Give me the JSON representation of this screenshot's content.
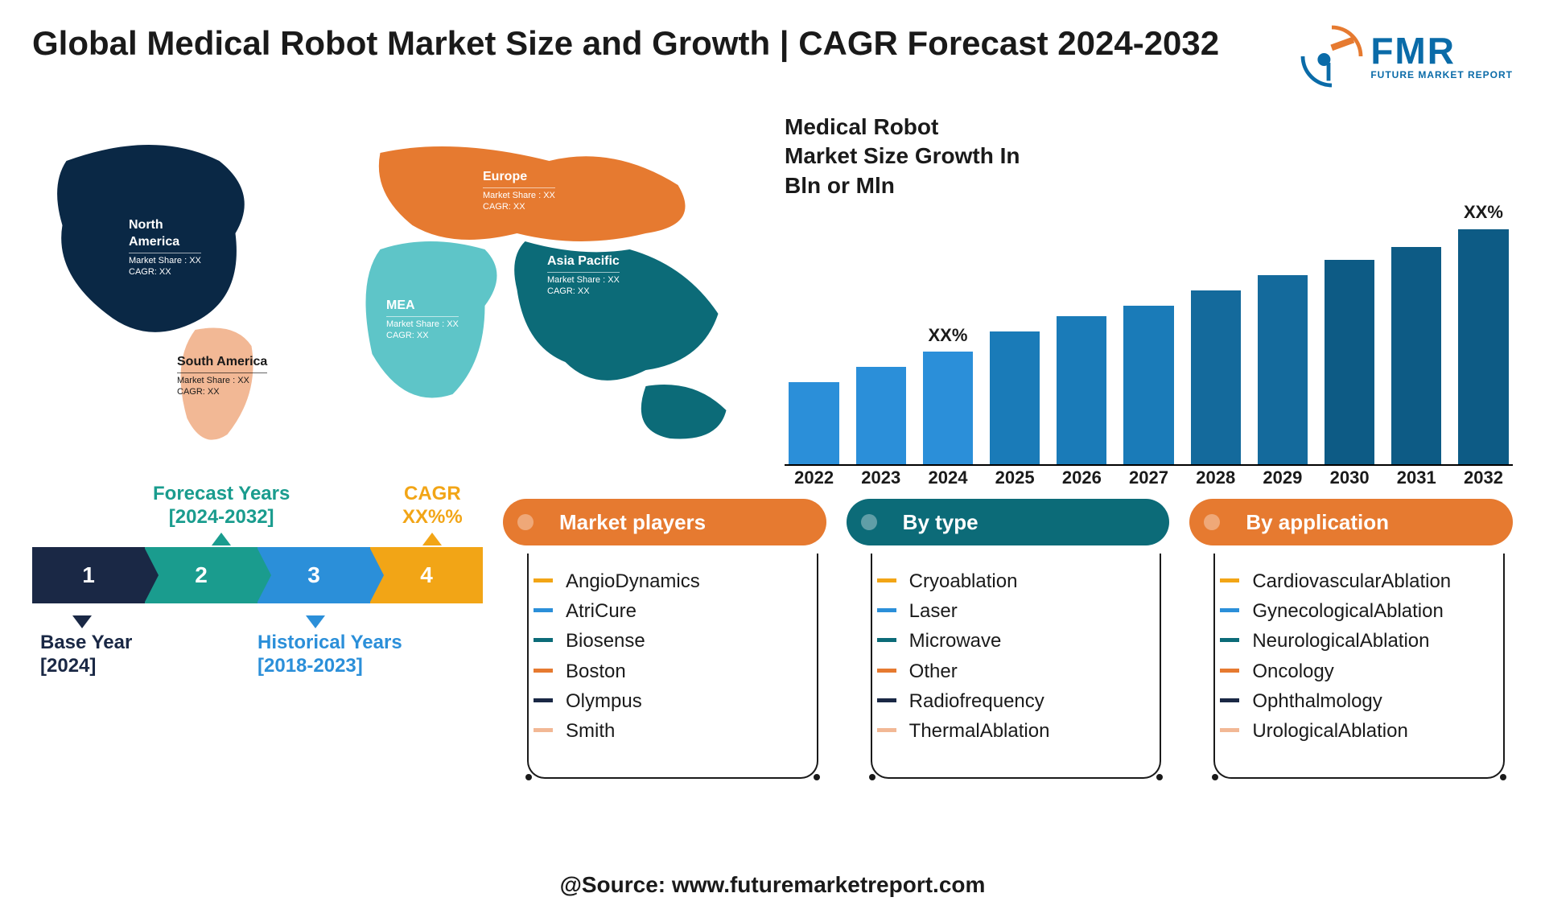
{
  "title": "Global Medical Robot Market Size and Growth | CAGR Forecast 2024-2032",
  "logo": {
    "fmr": "FMR",
    "sub": "FUTURE MARKET REPORT"
  },
  "map": {
    "regions": [
      {
        "name": "North America",
        "market_share": "XX",
        "cagr": "XX",
        "color": "#0a2845"
      },
      {
        "name": "South America",
        "market_share": "XX",
        "cagr": "XX",
        "color": "#f2b895"
      },
      {
        "name": "Europe",
        "market_share": "XX",
        "cagr": "XX",
        "color": "#e67a30"
      },
      {
        "name": "MEA",
        "market_share": "XX",
        "cagr": "XX",
        "color": "#5ec5c8"
      },
      {
        "name": "Asia Pacific",
        "market_share": "XX",
        "cagr": "XX",
        "color": "#0c6b78"
      }
    ]
  },
  "bar_chart": {
    "type": "bar",
    "title_line1": "Medical Robot",
    "title_line2": "Market Size Growth In",
    "title_line3": "Bln or Mln",
    "title_fontsize": 28,
    "years": [
      "2022",
      "2023",
      "2024",
      "2025",
      "2026",
      "2027",
      "2028",
      "2029",
      "2030",
      "2031",
      "2032"
    ],
    "values": [
      32,
      38,
      44,
      52,
      58,
      62,
      68,
      74,
      80,
      85,
      92
    ],
    "annot_2024": "XX%",
    "annot_2032": "XX%",
    "bar_colors": [
      "#2b8fd9",
      "#2b8fd9",
      "#2b8fd9",
      "#1a7bb8",
      "#1a7bb8",
      "#1a7bb8",
      "#146a9c",
      "#146a9c",
      "#0d5b85",
      "#0d5b85",
      "#0d5b85"
    ],
    "axis_color": "#000000",
    "label_fontsize": 22,
    "ylim": [
      0,
      100
    ]
  },
  "timeline": {
    "segments": [
      {
        "num": "1",
        "color": "#1a2845",
        "label_title": "Base Year",
        "label_sub": "[2024]",
        "label_color": "#1a2845",
        "pos": "bottom"
      },
      {
        "num": "2",
        "color": "#1a9c8e",
        "label_title": "Forecast Years",
        "label_sub": "[2024-2032]",
        "label_color": "#1a9c8e",
        "pos": "top"
      },
      {
        "num": "3",
        "color": "#2b8fd9",
        "label_title": "Historical Years",
        "label_sub": "[2018-2023]",
        "label_color": "#2b8fd9",
        "pos": "bottom"
      },
      {
        "num": "4",
        "color": "#f2a516",
        "label_title": "CAGR",
        "label_sub": "XX%%",
        "label_color": "#f2a516",
        "pos": "top"
      }
    ]
  },
  "segments": {
    "market_players": {
      "title": "Market players",
      "pill_color": "#e67a30",
      "items": [
        "AngioDynamics",
        "AtriCure",
        "Biosense",
        "Boston",
        "Olympus",
        "Smith"
      ],
      "item_colors": [
        "#f2a516",
        "#2b8fd9",
        "#0c6b78",
        "#e67a30",
        "#1a2845",
        "#f2b895"
      ]
    },
    "by_type": {
      "title": "By type",
      "pill_color": "#0c6b78",
      "items": [
        "Cryoablation",
        "Laser",
        "Microwave",
        "Other",
        "Radiofrequency",
        "ThermalAblation"
      ],
      "item_colors": [
        "#f2a516",
        "#2b8fd9",
        "#0c6b78",
        "#e67a30",
        "#1a2845",
        "#f2b895"
      ]
    },
    "by_application": {
      "title": "By application",
      "pill_color": "#e67a30",
      "items": [
        "CardiovascularAblation",
        "GynecologicalAblation",
        "NeurologicalAblation",
        "Oncology",
        "Ophthalmology",
        "UrologicalAblation"
      ],
      "item_colors": [
        "#f2a516",
        "#2b8fd9",
        "#0c6b78",
        "#e67a30",
        "#1a2845",
        "#f2b895"
      ]
    }
  },
  "source": "@Source: www.futuremarketreport.com"
}
